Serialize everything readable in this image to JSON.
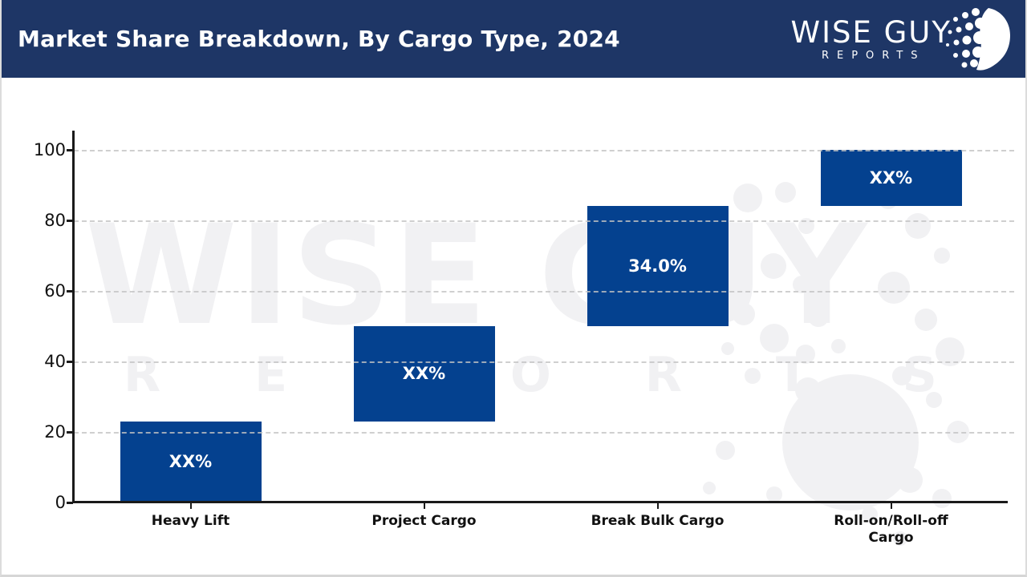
{
  "header": {
    "title": "Market Share Breakdown, By Cargo Type, 2024",
    "logo": {
      "line1": "WISE GUY",
      "line2": "REPORTS",
      "icon": "dotted-face"
    }
  },
  "watermark": {
    "line1": "WISE GUY",
    "line2": "R E P O R T S"
  },
  "chart_data": {
    "type": "bar",
    "subtype": "waterfall",
    "title": "Market Share Breakdown, By Cargo Type, 2024",
    "categories": [
      "Heavy Lift",
      "Project Cargo",
      "Break Bulk Cargo",
      "Roll-on/Roll-off Cargo"
    ],
    "segments": [
      {
        "category": "Heavy Lift",
        "start": 0,
        "end": 23,
        "label": "XX%"
      },
      {
        "category": "Project Cargo",
        "start": 23,
        "end": 50,
        "label": "XX%"
      },
      {
        "category": "Break Bulk Cargo",
        "start": 50,
        "end": 84,
        "label": "34.0%"
      },
      {
        "category": "Roll-on/Roll-off Cargo",
        "start": 84,
        "end": 100,
        "label": "XX%"
      }
    ],
    "xlabel": "",
    "ylabel": "",
    "ylim": [
      0,
      100
    ],
    "yticks": [
      0,
      20,
      40,
      60,
      80,
      100
    ],
    "grid": "horizontal-dashed",
    "legend": "none",
    "bar_color": "#04418f",
    "bar_label_color": "#ffffff"
  },
  "colors": {
    "header_navy": "#1e3666",
    "bar_blue": "#04418f",
    "watermark_gray": "#f1f1f3",
    "axis_black": "#1a1a1a",
    "grid_gray": "#c3c3c3"
  }
}
